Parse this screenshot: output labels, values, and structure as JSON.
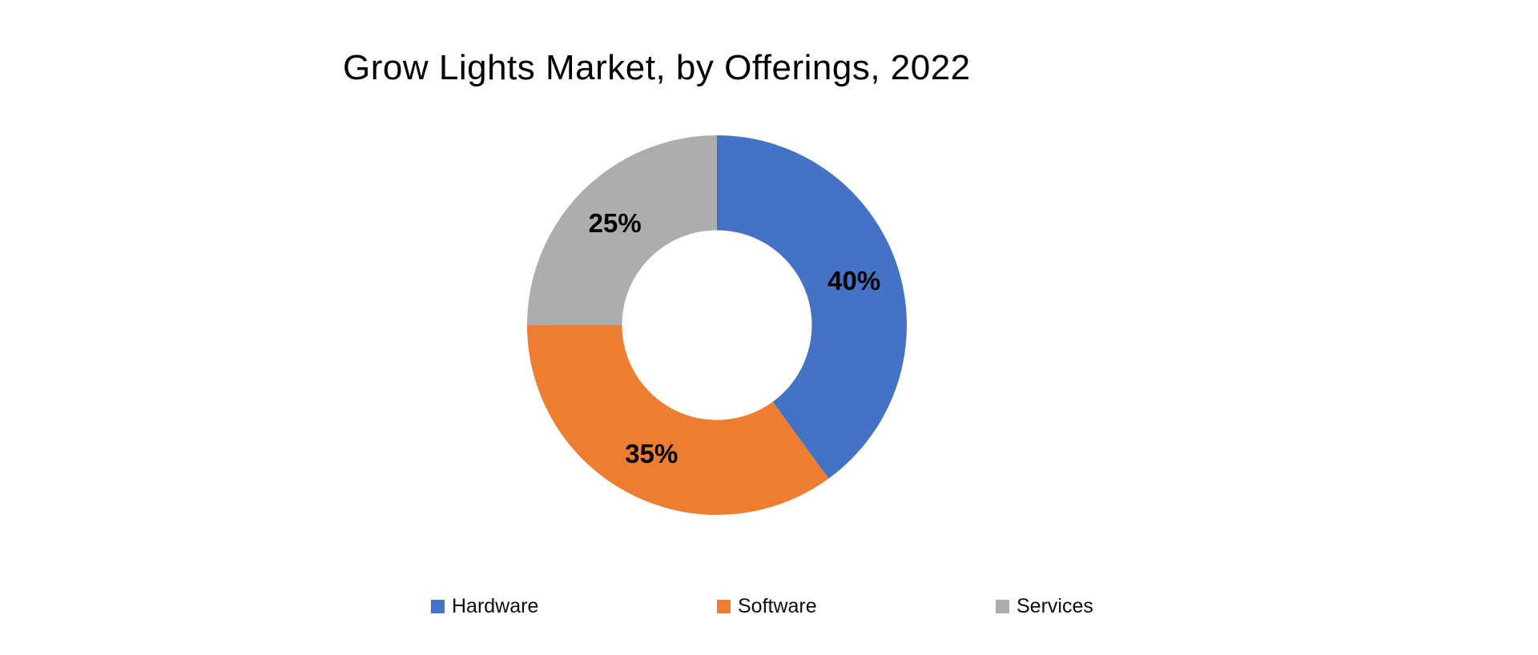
{
  "title": "Grow Lights Market, by Offerings, 2022",
  "chart_data": {
    "type": "pie",
    "subtype": "donut",
    "title": "Grow Lights Market, by Offerings, 2022",
    "categories": [
      "Hardware",
      "Software",
      "Services"
    ],
    "values": [
      40,
      35,
      25
    ],
    "unit": "%",
    "data_labels": [
      "40%",
      "35%",
      "25%"
    ],
    "colors": [
      "#4472C4",
      "#ED7D31",
      "#ADADAD"
    ],
    "label_color": "#000000",
    "start_angle_deg": 0,
    "direction": "clockwise",
    "hole_ratio": 0.5,
    "grid": false,
    "legend_position": "bottom",
    "legend": [
      {
        "label": "Hardware",
        "color": "#4472C4"
      },
      {
        "label": "Software",
        "color": "#ED7D31"
      },
      {
        "label": "Services",
        "color": "#ADADAD"
      }
    ]
  }
}
